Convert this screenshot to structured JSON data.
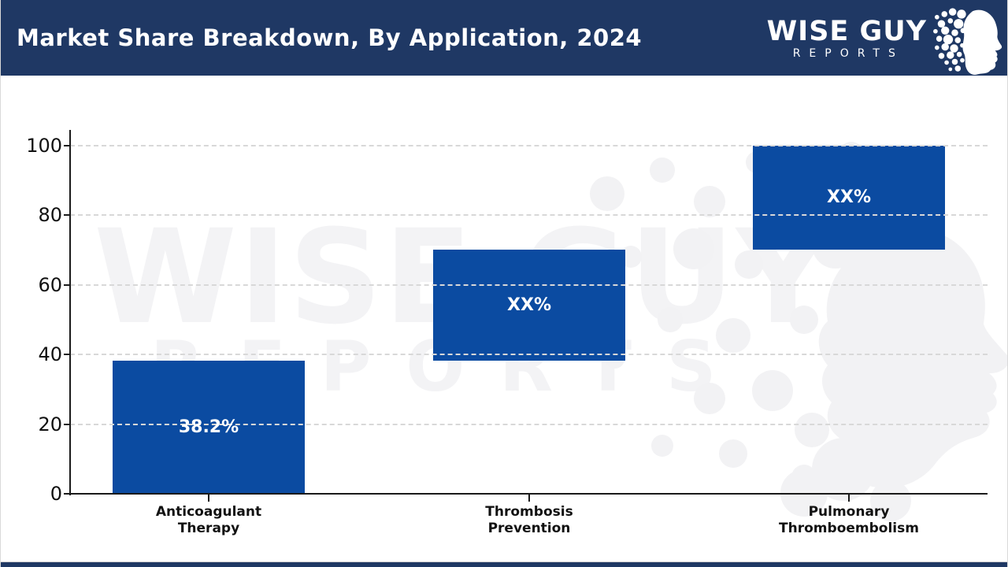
{
  "header": {
    "title": "Market Share Breakdown, By Application, 2024",
    "brand": {
      "line1": "WISE GUY",
      "line2": "REPORTS"
    }
  },
  "watermark": {
    "line1": "WISE GUY",
    "line2": "REPORTS"
  },
  "chart_data": {
    "type": "bar",
    "subtype": "floating-waterfall",
    "title": "Market Share Breakdown, By Application, 2024",
    "categories": [
      "Anticoagulant Therapy",
      "Thrombosis Prevention",
      "Pulmonary Thromboembolism"
    ],
    "bars": [
      {
        "category": "Anticoagulant Therapy",
        "label_lines": [
          "Anticoagulant",
          "Therapy"
        ],
        "start": 0,
        "end": 38.2,
        "value_label": "38.2%"
      },
      {
        "category": "Thrombosis Prevention",
        "label_lines": [
          "Thrombosis",
          "Prevention"
        ],
        "start": 38.2,
        "end": 70,
        "value_label": "XX%"
      },
      {
        "category": "Pulmonary Thromboembolism",
        "label_lines": [
          "Pulmonary",
          "Thromboembolism"
        ],
        "start": 70,
        "end": 100,
        "value_label": "XX%"
      }
    ],
    "y_ticks": [
      0,
      20,
      40,
      60,
      80,
      100
    ],
    "ylim": [
      0,
      105
    ],
    "xlabel": "",
    "ylabel": "",
    "grid": "dashed-horizontal",
    "legend": "none",
    "bar_color": "#0b4ba1",
    "value_label_color": "#ffffff"
  },
  "colors": {
    "header_bg": "#1f3864",
    "footer_bg": "#1f3864",
    "bar": "#0b4ba1",
    "grid": "#d8d8d8",
    "axis": "#1a1a1a",
    "watermark": "#f3f3f5"
  }
}
